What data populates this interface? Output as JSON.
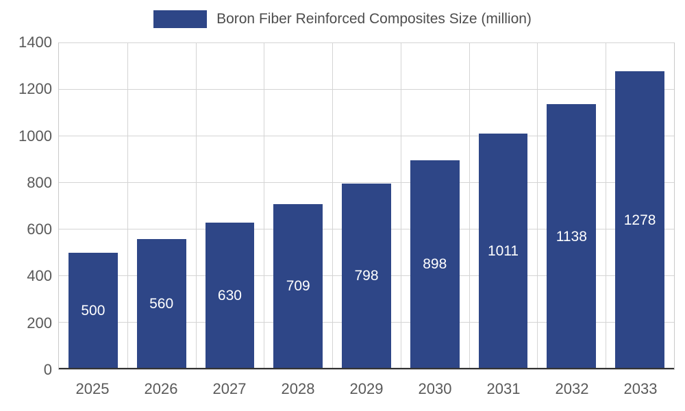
{
  "legend": {
    "label": "Boron Fiber Reinforced Composites Size (million)"
  },
  "chart_data": {
    "type": "bar",
    "title": "Boron Fiber Reinforced Composites Size (million)",
    "categories": [
      "2025",
      "2026",
      "2027",
      "2028",
      "2029",
      "2030",
      "2031",
      "2032",
      "2033"
    ],
    "values": [
      500,
      560,
      630,
      709,
      798,
      898,
      1011,
      1138,
      1278
    ],
    "xlabel": "",
    "ylabel": "",
    "ylim": [
      0,
      1400
    ],
    "ytick_step": 200,
    "grid": true,
    "legend_position": "top-center",
    "bar_color": "#2E4687",
    "value_label_color": "#FFFFFF",
    "axis_text_color": "#595959",
    "gridline_color": "#D4D4D4",
    "axis_line_color": "#333333"
  }
}
